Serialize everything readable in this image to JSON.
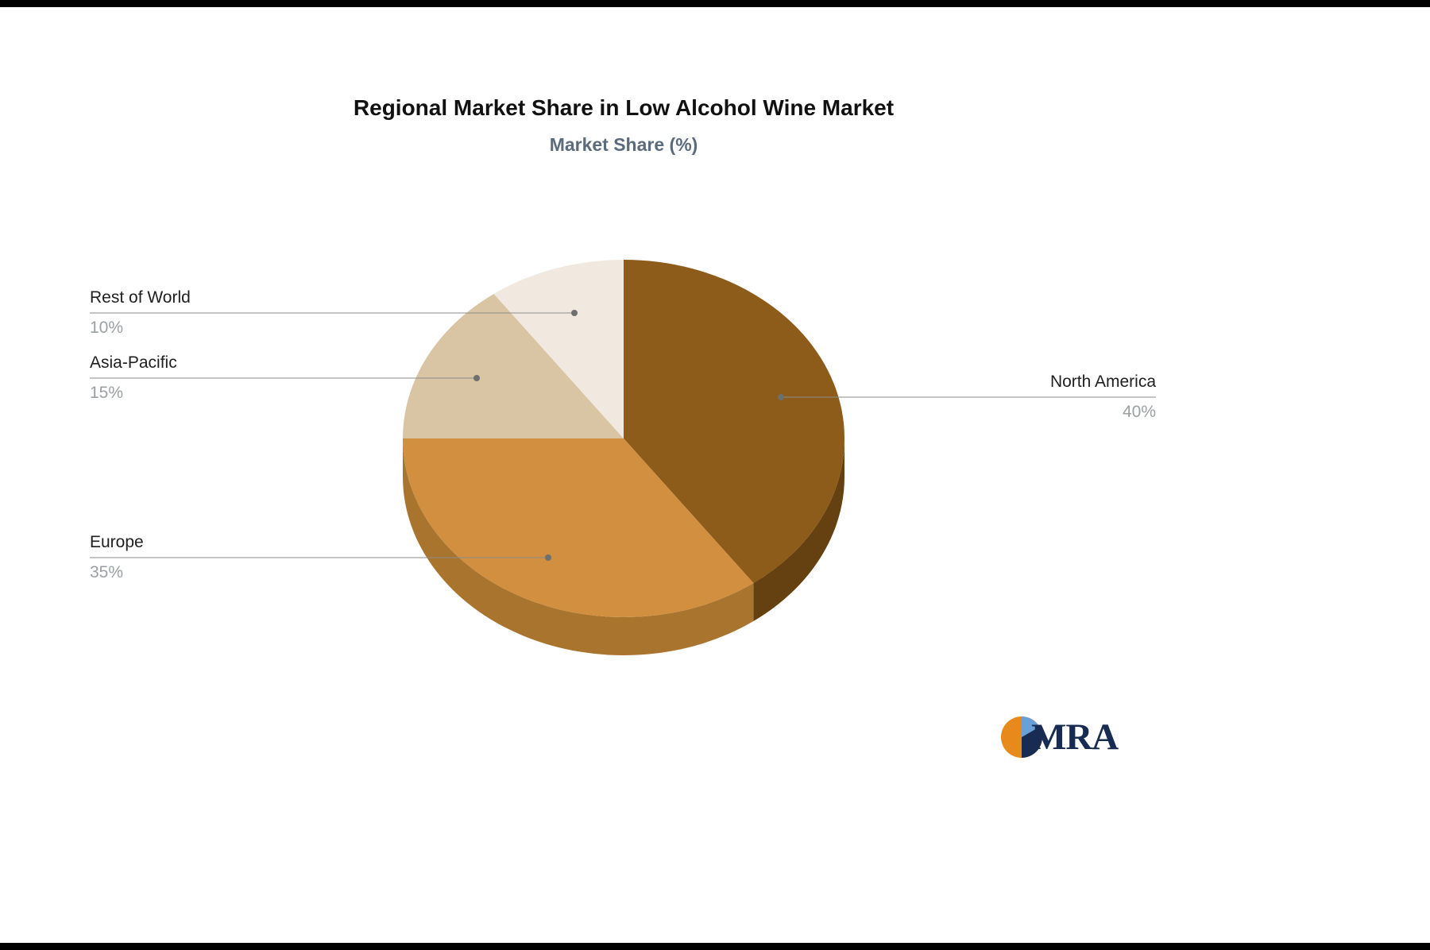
{
  "chart_data": {
    "type": "pie",
    "title": "Regional Market Share in Low Alcohol Wine Market",
    "subtitle": "Market Share (%)",
    "unit": "%",
    "direction": "clockwise",
    "start_angle": "top",
    "style": "3d",
    "legend_position": "callout-labels",
    "slices": [
      {
        "label": "North America",
        "value": 40,
        "pct_label": "40%",
        "color": "#8e5c1a",
        "side_color": "#654010"
      },
      {
        "label": "Europe",
        "value": 35,
        "pct_label": "35%",
        "color": "#d18f3f",
        "side_color": "#a9752e"
      },
      {
        "label": "Asia-Pacific",
        "value": 15,
        "pct_label": "15%",
        "color": "#d9c5a4",
        "side_color": null
      },
      {
        "label": "Rest of World",
        "value": 10,
        "pct_label": "10%",
        "color": "#f1e9e0",
        "side_color": null
      }
    ],
    "callout_line_color": "#8b8b8b",
    "callout_dot_color": "#6f6f6f",
    "label_color": "#1f1f1f",
    "value_color": "#9aa0a4",
    "title_color": "#111111",
    "subtitle_color": "#5b6b7c"
  },
  "branding": {
    "logo_text": "MRA",
    "logo_text_color": "#182b52",
    "logo_icon": "pie-mark",
    "logo_icon_colors": {
      "primary": "#e8891b",
      "secondary": "#182b52",
      "tertiary": "#6aa0d8"
    }
  }
}
